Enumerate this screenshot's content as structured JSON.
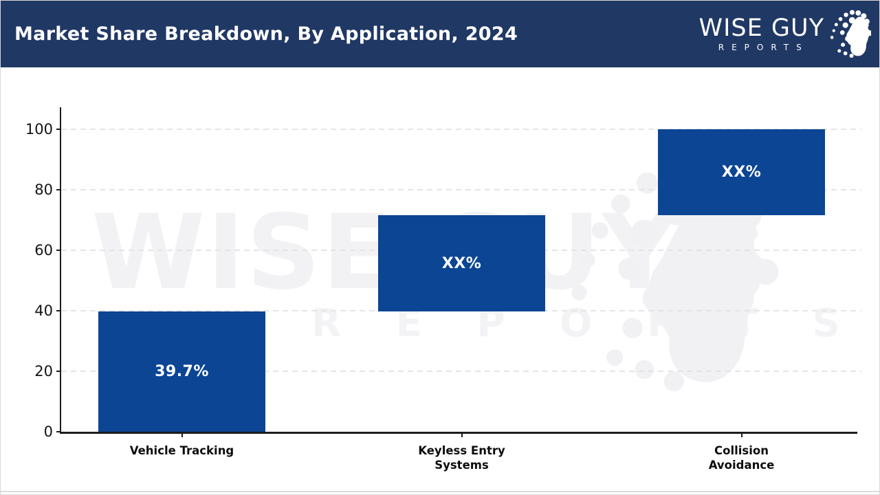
{
  "header": {
    "title": "Market Share Breakdown, By Application, 2024",
    "bg_color": "#203864",
    "logo": {
      "line1": "WISE GUY",
      "line2": "REPORTS",
      "face_icon": "dotted-face-profile"
    }
  },
  "watermark": {
    "line1": "WISE GUY",
    "line2": "R E P O R T S",
    "face_icon": "dotted-face-profile"
  },
  "chart_data": {
    "type": "bar",
    "variant": "waterfall-floating-bars",
    "title": "Market Share Breakdown, By Application, 2024",
    "categories": [
      [
        "Vehicle Tracking"
      ],
      [
        "Keyless Entry",
        "Systems"
      ],
      [
        "Collision",
        "Avoidance"
      ]
    ],
    "bars": [
      {
        "label": "Vehicle Tracking",
        "start": 0,
        "end": 39.7,
        "value_label": "39.7%"
      },
      {
        "label": "Keyless Entry Systems",
        "start": 39.7,
        "end": 71.6,
        "value_label": "XX%"
      },
      {
        "label": "Collision Avoidance",
        "start": 71.6,
        "end": 100,
        "value_label": "XX%"
      }
    ],
    "bar_color": "#0B4594",
    "value_label_color": "#ffffff",
    "xlabel": "",
    "ylabel": "",
    "ylim": [
      0,
      100
    ],
    "yticks": [
      0,
      20,
      40,
      60,
      80,
      100
    ],
    "grid": "horizontal-dashed",
    "gridline_color": "#e4e4e7",
    "legend": null
  }
}
